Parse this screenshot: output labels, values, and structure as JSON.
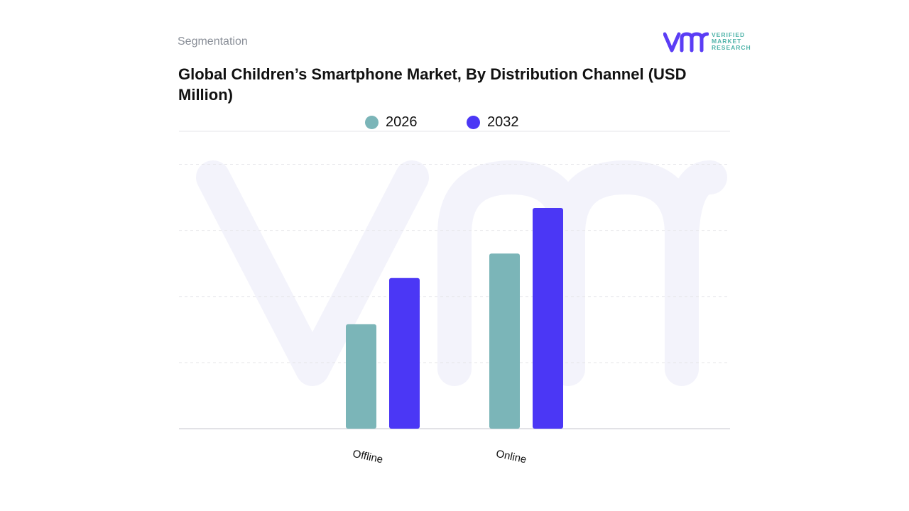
{
  "header": {
    "kicker": "Segmentation",
    "title": "Global Children’s Smartphone Market, By Distribution Channel (USD Million)"
  },
  "logo": {
    "line1": "VERIFIED",
    "line2": "MARKET",
    "line3": "RESEARCH",
    "mark_color": "#5b3df5",
    "text_color": "#4fb3a9"
  },
  "colors": {
    "series_2026": "#7bb5b8",
    "series_2032": "#4b37f5",
    "grid": "#e6e6ea",
    "watermark": "#f3f3fb"
  },
  "chart_data": {
    "type": "bar",
    "title": "Global Children’s Smartphone Market, By Distribution Channel (USD Million)",
    "xlabel": "",
    "ylabel": "",
    "categories": [
      "Offline",
      "Online"
    ],
    "series": [
      {
        "name": "2026",
        "values": [
          158,
          265
        ]
      },
      {
        "name": "2032",
        "values": [
          228,
          334
        ]
      }
    ],
    "ylim": [
      0,
      450
    ],
    "grid": true,
    "legend": "top-center",
    "y_tick_labels_shown": false
  }
}
